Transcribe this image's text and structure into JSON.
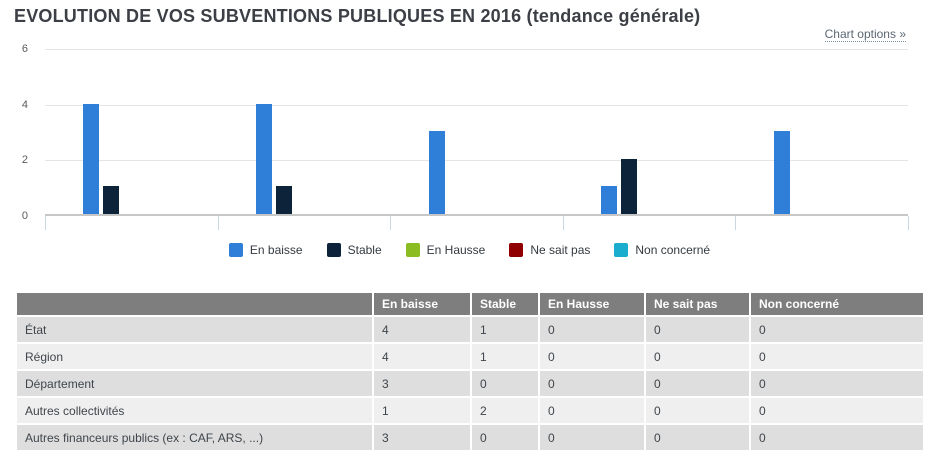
{
  "page": {
    "title": "EVOLUTION DE VOS SUBVENTIONS PUBLIQUES EN 2016 (tendance générale)",
    "chart_options_label": "Chart options »"
  },
  "chart_data": {
    "type": "bar",
    "title": "EVOLUTION DE VOS SUBVENTIONS PUBLIQUES EN 2016 (tendance générale)",
    "categories": [
      "État",
      "Région",
      "Département",
      "Autres collectivités",
      "Autres financeurs publics (ex : CAF, ARS, ...)"
    ],
    "series": [
      {
        "name": "En baisse",
        "color": "#2f7ed8",
        "values": [
          4,
          4,
          3,
          1,
          3
        ]
      },
      {
        "name": "Stable",
        "color": "#0d233a",
        "values": [
          1,
          1,
          0,
          2,
          0
        ]
      },
      {
        "name": "En Hausse",
        "color": "#8bbc21",
        "values": [
          0,
          0,
          0,
          0,
          0
        ]
      },
      {
        "name": "Ne sait pas",
        "color": "#910000",
        "values": [
          0,
          0,
          0,
          0,
          0
        ]
      },
      {
        "name": "Non concerné",
        "color": "#1aadce",
        "values": [
          0,
          0,
          0,
          0,
          0
        ]
      }
    ],
    "xlabel": "",
    "ylabel": "",
    "ylim": [
      0,
      6
    ],
    "yticks": [
      0,
      2,
      4,
      6
    ],
    "x_tick_labels_visible": false,
    "grid": true,
    "legend_position": "bottom"
  },
  "table": {
    "columns": [
      "",
      "En baisse",
      "Stable",
      "En Hausse",
      "Ne sait pas",
      "Non concerné"
    ],
    "rows": [
      {
        "label": "État",
        "values": [
          4,
          1,
          0,
          0,
          0
        ]
      },
      {
        "label": "Région",
        "values": [
          4,
          1,
          0,
          0,
          0
        ]
      },
      {
        "label": "Département",
        "values": [
          3,
          0,
          0,
          0,
          0
        ]
      },
      {
        "label": "Autres collectivités",
        "values": [
          1,
          2,
          0,
          0,
          0
        ]
      },
      {
        "label": "Autres financeurs publics (ex : CAF, ARS, ...)",
        "values": [
          3,
          0,
          0,
          0,
          0
        ]
      }
    ]
  }
}
